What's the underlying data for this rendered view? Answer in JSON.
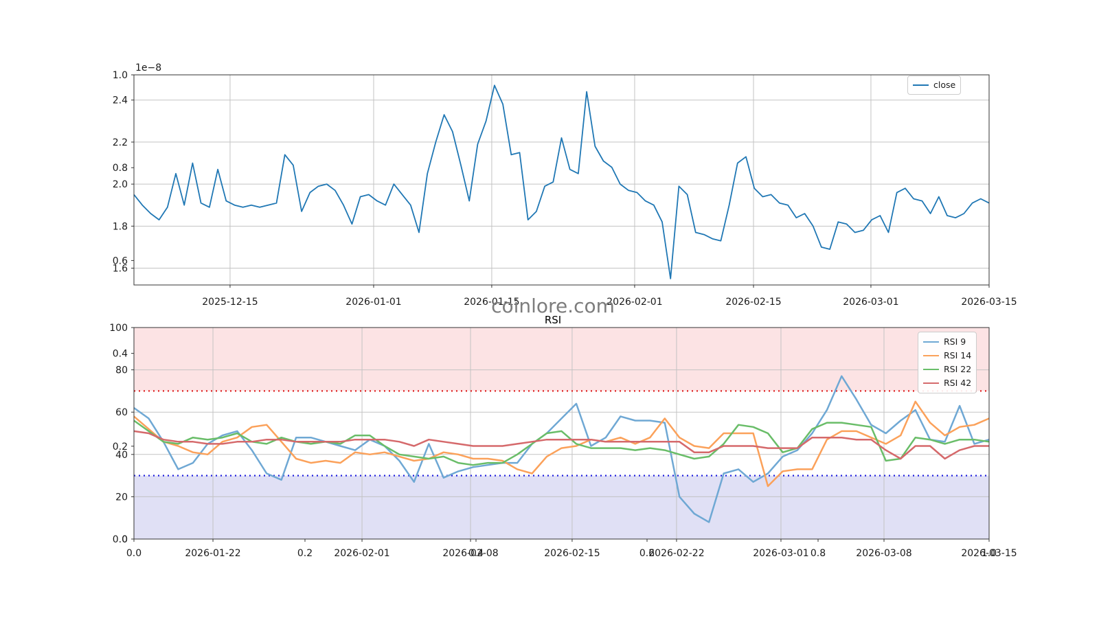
{
  "watermark": {
    "text": "coinlore.com"
  },
  "titles": {
    "rsi": "RSI",
    "offset": "1e−8"
  },
  "legends": {
    "close": [
      "close"
    ],
    "rsi": [
      "RSI 9",
      "RSI 14",
      "RSI 22",
      "RSI 42"
    ]
  },
  "phantom_axis": {
    "y_labels": [
      "1.0",
      "0.8",
      "0.6",
      "0.4",
      "0.2",
      "0.0"
    ],
    "x_labels": [
      "0.0",
      "0.2",
      "0.4",
      "0.6",
      "0.8",
      "1.0"
    ]
  },
  "colors": {
    "close_line": "#1f77b4",
    "rsi9": "#6fa8d4",
    "rsi14": "#fba15a",
    "rsi22": "#69bd68",
    "rsi42": "#d5696b",
    "overbought_band": "#fce3e4",
    "oversold_band": "#e0e0f5",
    "overbought_line": "#dd2020",
    "oversold_line": "#2020dd",
    "grid": "#c3c3c3",
    "spine": "#333333"
  },
  "chart_data": [
    {
      "type": "line",
      "name": "close-price",
      "ylabel_offset": "1e-8",
      "ylim": [
        1.52,
        2.52
      ],
      "yticks": [
        "1.6",
        "1.8",
        "2.0",
        "2.2",
        "2.4"
      ],
      "grid": true,
      "legend_position": "upper right",
      "xticks": [
        {
          "label": "2025-12-15",
          "pos": 0.1124
        },
        {
          "label": "2026-01-01",
          "pos": 0.2803
        },
        {
          "label": "2026-01-15",
          "pos": 0.4184
        },
        {
          "label": "2026-02-01",
          "pos": 0.5855
        },
        {
          "label": "2026-02-15",
          "pos": 0.7245
        },
        {
          "label": "2026-03-01",
          "pos": 0.8618
        },
        {
          "label": "2026-03-15",
          "pos": 1.0
        }
      ],
      "series": [
        {
          "name": "close",
          "color": "#1f77b4",
          "width": 1.8,
          "values": [
            1.95,
            1.9,
            1.86,
            1.83,
            1.89,
            2.05,
            1.9,
            2.1,
            1.91,
            1.89,
            2.07,
            1.92,
            1.9,
            1.89,
            1.9,
            1.89,
            1.9,
            1.91,
            2.14,
            2.09,
            1.87,
            1.96,
            1.99,
            2.0,
            1.97,
            1.9,
            1.81,
            1.94,
            1.95,
            1.92,
            1.9,
            2.0,
            1.95,
            1.9,
            1.77,
            2.05,
            2.2,
            2.33,
            2.25,
            2.09,
            1.92,
            2.19,
            2.3,
            2.47,
            2.38,
            2.14,
            2.15,
            1.83,
            1.87,
            1.99,
            2.01,
            2.22,
            2.07,
            2.05,
            2.44,
            2.18,
            2.11,
            2.08,
            2.0,
            1.97,
            1.96,
            1.92,
            1.9,
            1.82,
            1.55,
            1.99,
            1.95,
            1.77,
            1.76,
            1.74,
            1.73,
            1.9,
            2.1,
            2.13,
            1.98,
            1.94,
            1.95,
            1.91,
            1.9,
            1.84,
            1.86,
            1.8,
            1.7,
            1.69,
            1.82,
            1.81,
            1.77,
            1.78,
            1.83,
            1.85,
            1.77,
            1.96,
            1.98,
            1.93,
            1.92,
            1.86,
            1.94,
            1.85,
            1.84,
            1.86,
            1.91,
            1.93,
            1.91
          ]
        }
      ]
    },
    {
      "type": "line",
      "name": "rsi",
      "title": "RSI",
      "ylim": [
        0,
        100
      ],
      "yticks": [
        "0",
        "20",
        "40",
        "60",
        "80",
        "100"
      ],
      "grid": true,
      "overbought": {
        "level": 70,
        "band": [
          70,
          100
        ]
      },
      "oversold": {
        "level": 30,
        "band": [
          0,
          30
        ]
      },
      "legend_position": "upper right",
      "xticks": [
        {
          "label": "2026-01-22",
          "pos": 0.0924
        },
        {
          "label": "2026-02-01",
          "pos": 0.2667
        },
        {
          "label": "2026-02-08",
          "pos": 0.3936
        },
        {
          "label": "2026-02-15",
          "pos": 0.5124
        },
        {
          "label": "2026-02-22",
          "pos": 0.6345
        },
        {
          "label": "2026-03-01",
          "pos": 0.7566
        },
        {
          "label": "2026-03-08",
          "pos": 0.8771
        },
        {
          "label": "2026-03-15",
          "pos": 1.0
        }
      ],
      "series": [
        {
          "name": "RSI 9",
          "color": "#6fa8d4",
          "width": 2.5,
          "values": [
            62,
            57,
            46,
            33,
            36,
            45,
            49,
            51,
            42,
            31,
            28,
            48,
            48,
            46,
            44,
            42,
            47,
            44,
            37,
            27,
            45,
            29,
            32,
            34,
            35,
            36,
            36,
            45,
            50,
            57,
            64,
            44,
            48,
            58,
            56,
            56,
            55,
            20,
            12,
            8,
            31,
            33,
            27,
            31,
            39,
            42,
            50,
            61,
            77,
            66,
            54,
            50,
            56,
            61,
            47,
            46,
            63,
            45,
            47
          ]
        },
        {
          "name": "RSI 14",
          "color": "#fba15a",
          "width": 2.5,
          "values": [
            58,
            52,
            46,
            44,
            41,
            40,
            46,
            48,
            53,
            54,
            46,
            38,
            36,
            37,
            36,
            41,
            40,
            41,
            39,
            37,
            38,
            41,
            40,
            38,
            38,
            37,
            33,
            31,
            39,
            43,
            44,
            47,
            46,
            48,
            45,
            48,
            57,
            48,
            44,
            43,
            50,
            50,
            50,
            25,
            32,
            33,
            33,
            47,
            51,
            51,
            48,
            45,
            49,
            65,
            55,
            49,
            53,
            54,
            57
          ]
        },
        {
          "name": "RSI 22",
          "color": "#69bd68",
          "width": 2.5,
          "values": [
            56,
            51,
            46,
            45,
            48,
            47,
            48,
            50,
            46,
            45,
            48,
            46,
            45,
            46,
            45,
            49,
            49,
            44,
            40,
            39,
            38,
            39,
            36,
            35,
            36,
            36,
            40,
            45,
            50,
            51,
            45,
            43,
            43,
            43,
            42,
            43,
            42,
            40,
            38,
            39,
            45,
            54,
            53,
            50,
            41,
            43,
            52,
            55,
            55,
            54,
            53,
            37,
            38,
            48,
            47,
            45,
            47,
            47,
            46
          ]
        },
        {
          "name": "RSI 42",
          "color": "#d5696b",
          "width": 2.5,
          "values": [
            51,
            50,
            47,
            46,
            46,
            45,
            45,
            46,
            46,
            47,
            47,
            46,
            46,
            46,
            46,
            47,
            47,
            47,
            46,
            44,
            47,
            46,
            45,
            44,
            44,
            44,
            45,
            46,
            47,
            47,
            47,
            47,
            46,
            46,
            46,
            46,
            46,
            46,
            41,
            41,
            44,
            44,
            44,
            43,
            43,
            43,
            48,
            48,
            48,
            47,
            47,
            42,
            38,
            44,
            44,
            38,
            42,
            44,
            44
          ]
        }
      ]
    }
  ]
}
